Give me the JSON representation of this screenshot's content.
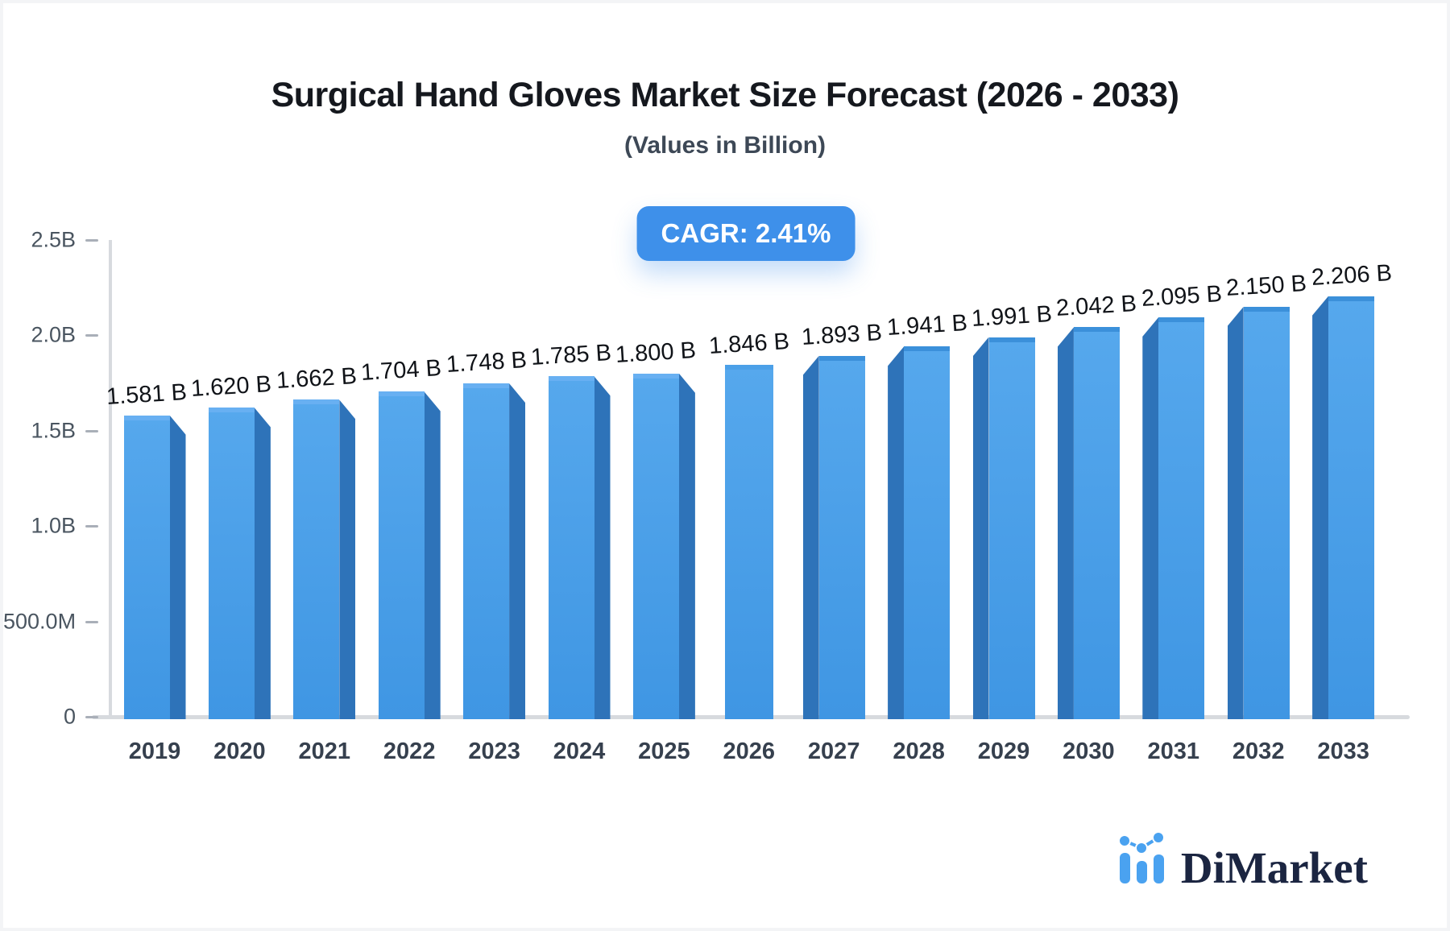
{
  "page": {
    "background": "#f3f4f6",
    "card_background": "#ffffff"
  },
  "header": {
    "title": "Surgical Hand Gloves Market Size Forecast (2026 - 2033)",
    "subtitle": "(Values in Billion)"
  },
  "badge": {
    "label": "CAGR: 2.41%",
    "background": "#3E90EA",
    "text_color": "#ffffff"
  },
  "footer": {
    "brand": "DiMarket",
    "logo_icon": "bar-chart-logo-icon",
    "brand_color": "#1b2541",
    "icon_color": "#4aa2f0"
  },
  "chart_data": {
    "type": "bar",
    "title": "Surgical Hand Gloves Market Size Forecast (2026 - 2033)",
    "subtitle": "(Values in Billion)",
    "cagr": "2.41%",
    "unit": "B",
    "categories": [
      "2019",
      "2020",
      "2021",
      "2022",
      "2023",
      "2024",
      "2025",
      "2026",
      "2027",
      "2028",
      "2029",
      "2030",
      "2031",
      "2032",
      "2033"
    ],
    "values": [
      1.581,
      1.62,
      1.662,
      1.704,
      1.748,
      1.785,
      1.8,
      1.846,
      1.893,
      1.941,
      1.991,
      2.042,
      2.095,
      2.15,
      2.206
    ],
    "value_labels": [
      "1.581 B",
      "1.620 B",
      "1.662 B",
      "1.704 B",
      "1.748 B",
      "1.785 B",
      "1.800 B",
      "1.846 B",
      "1.893 B",
      "1.941 B",
      "1.991 B",
      "2.042 B",
      "2.095 B",
      "2.150 B",
      "2.206 B"
    ],
    "xlabel": "",
    "ylabel": "",
    "ylim": [
      0,
      2.5
    ],
    "yticks": [
      {
        "label": "2.5B",
        "value": 2.5
      },
      {
        "label": "2.0B",
        "value": 2.0
      },
      {
        "label": "1.5B",
        "value": 1.5
      },
      {
        "label": "1.0B",
        "value": 1.0
      },
      {
        "label": "500.0M",
        "value": 0.5
      },
      {
        "label": "0",
        "value": 0
      }
    ],
    "grid": false,
    "legend": false,
    "colors": {
      "face_gradient_top": "#56a8ed",
      "face_gradient_bottom": "#3f96e3",
      "side": "#2e73b9",
      "top_strip_left_bars": "#68b0f2",
      "top_strip_center_bar": "#4ba0e8",
      "top_strip_right_bars": "#3b90da",
      "axis_line": "#d7dade",
      "tick": "#a9afb8",
      "ytick_text": "#4a5560",
      "xtick_text": "#36404e",
      "value_text": "#101318"
    }
  }
}
